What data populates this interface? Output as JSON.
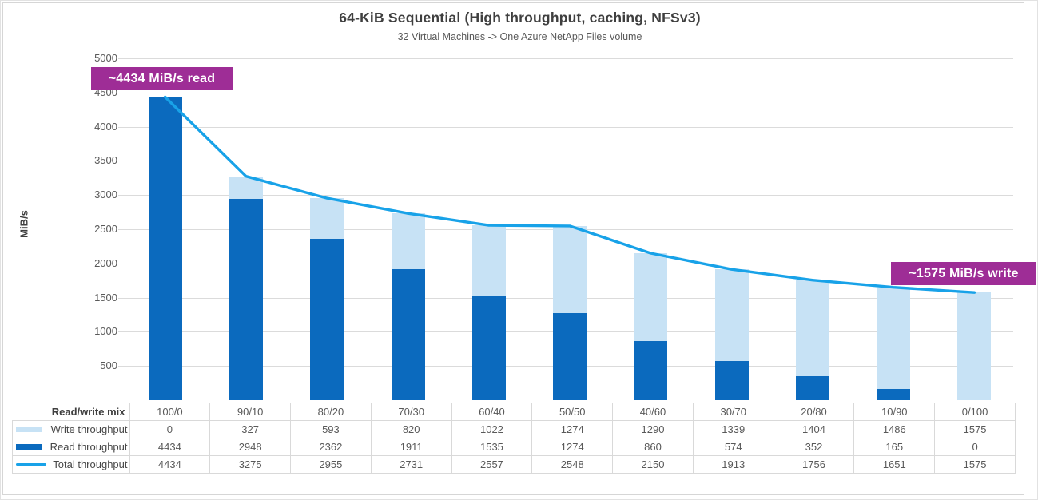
{
  "header": {
    "title": "64-KiB Sequential (High throughput, caching, NFSv3)",
    "subtitle": "32 Virtual Machines -> One Azure NetApp Files volume"
  },
  "callouts": {
    "read_label": "~4434 MiB/s read",
    "write_label": "~1575 MiB/s write"
  },
  "colors": {
    "callout_bg": "#9e2d96",
    "grid": "#dbdbdb",
    "table_border": "#d9d9d9",
    "write_bar": "#c7e2f5",
    "read_bar": "#0b6abe",
    "total_line": "#18a2e8"
  },
  "chart_data": {
    "type": "bar",
    "subtype": "stacked-column-with-total-line",
    "title": "64-KiB Sequential (High throughput, caching, NFSv3)",
    "subtitle": "32 Virtual Machines -> One Azure NetApp Files volume",
    "xlabel": "",
    "ylabel": "MiB/s",
    "ylim": [
      0,
      5000
    ],
    "ytick_step": 500,
    "grid": true,
    "legend_position": "table-left-column",
    "row_header": "Read/write mix",
    "categories": [
      "100/0",
      "90/10",
      "80/20",
      "70/30",
      "60/40",
      "50/50",
      "40/60",
      "30/70",
      "20/80",
      "10/90",
      "0/100"
    ],
    "series": [
      {
        "name": "Write throughput",
        "type": "bar",
        "stack_order": "top",
        "color": "#c7e2f5",
        "values": [
          0,
          327,
          593,
          820,
          1022,
          1274,
          1290,
          1339,
          1404,
          1486,
          1575
        ]
      },
      {
        "name": "Read throughput",
        "type": "bar",
        "stack_order": "bottom",
        "color": "#0b6abe",
        "values": [
          4434,
          2948,
          2362,
          1911,
          1535,
          1274,
          860,
          574,
          352,
          165,
          0
        ]
      },
      {
        "name": "Total throughput",
        "type": "line",
        "color": "#18a2e8",
        "values": [
          4434,
          3275,
          2955,
          2731,
          2557,
          2548,
          2150,
          1913,
          1756,
          1651,
          1575
        ]
      }
    ]
  }
}
